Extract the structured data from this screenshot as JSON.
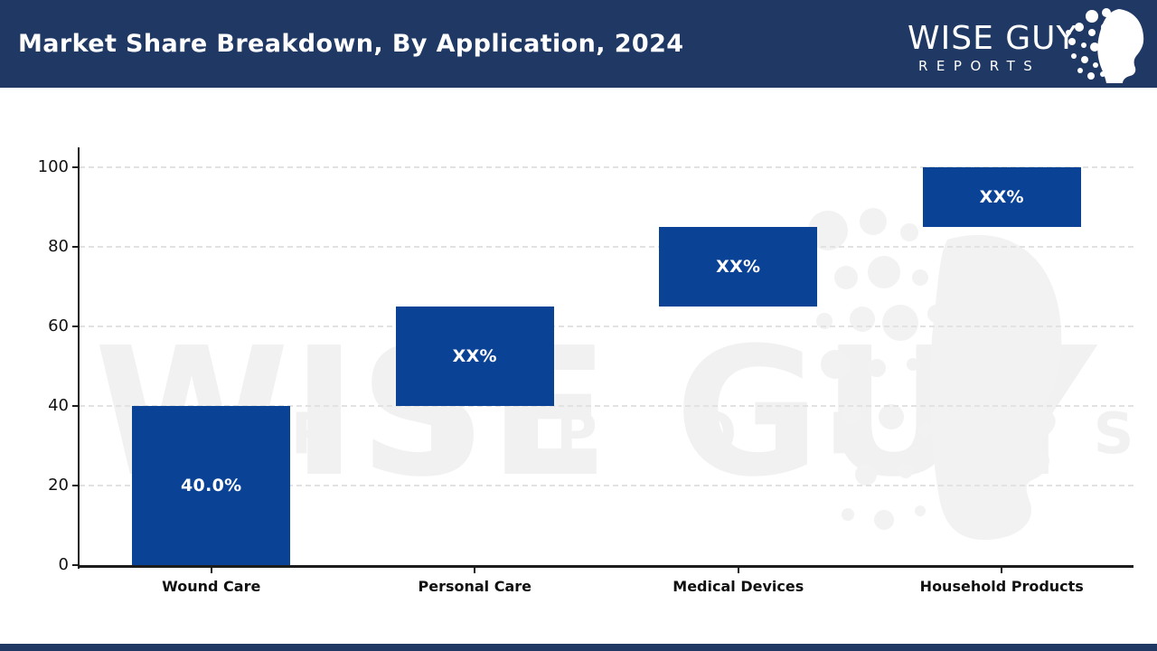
{
  "header": {
    "title": "Market Share Breakdown, By Application, 2024",
    "logo": {
      "line1": "WISE GUY",
      "line2": "R E P O R T S"
    }
  },
  "watermark": {
    "line1": "WISE GUY",
    "line2": "R E P O R T S"
  },
  "footer": {},
  "chart_data": {
    "type": "bar",
    "subtype": "floating-waterfall",
    "title": "Market Share Breakdown, By Application, 2024",
    "categories": [
      "Wound Care",
      "Personal Care",
      "Medical Devices",
      "Household Products"
    ],
    "series": [
      {
        "name": "Market Share (%)",
        "segments": [
          {
            "category": "Wound Care",
            "start": 0,
            "end": 40,
            "label": "40.0%"
          },
          {
            "category": "Personal Care",
            "start": 40,
            "end": 65,
            "label": "XX%"
          },
          {
            "category": "Medical Devices",
            "start": 65,
            "end": 85,
            "label": "XX%"
          },
          {
            "category": "Household Products",
            "start": 85,
            "end": 100,
            "label": "XX%"
          }
        ]
      }
    ],
    "xlabel": "",
    "ylabel": "",
    "ylim": [
      0,
      105
    ],
    "yticks": [
      0,
      20,
      40,
      60,
      80,
      100
    ],
    "grid": "horizontal-dashed",
    "legend": "none",
    "colors": {
      "bar": "#0a4296",
      "bar_label": "#ffffff",
      "grid": "#e2e2e2",
      "axis": "#1c1c1c",
      "header_bg": "#203864",
      "watermark": "#f1f1f2"
    }
  }
}
